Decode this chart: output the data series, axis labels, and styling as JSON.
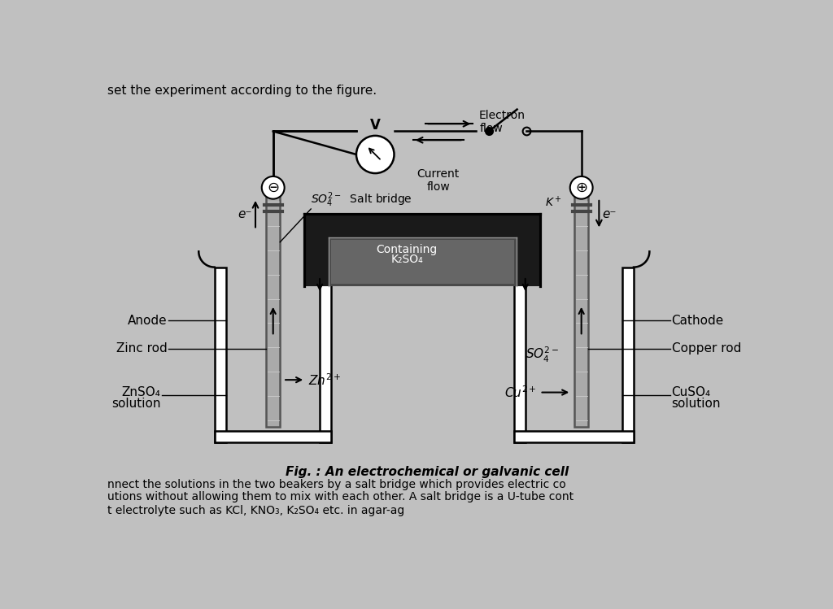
{
  "bg_color": "#c0c0c0",
  "title_text": "Fig. : An electrochemical or galvanic cell",
  "header_text": "set the experiment according to the figure.",
  "footer_lines": [
    "nnect the solutions in the two beakers by a salt bridge which provides electric co",
    "utions without allowing them to mix with each other. A salt bridge is a U-tube cont",
    "t electrolyte such as KCl, KNO₃, K₂SO₄ etc. in agar-ag"
  ],
  "labels": {
    "anode": "Anode",
    "zinc_rod": "Zinc rod",
    "znso4_line1": "ZnSO₄",
    "znso4_line2": "solution",
    "zn2plus": "Zn²⁺",
    "e_left": "e⁻",
    "e_right": "e⁻",
    "electron_flow": "Electron\nflow",
    "current_flow": "Current\nflow",
    "voltmeter": "V",
    "cathode": "Cathode",
    "copper_rod": "Copper rod",
    "cuso4_line1": "CuSO₄",
    "cuso4_line2": "solution",
    "so4_right": "SO₄²⁻",
    "cu2plus": "Cu²⁺",
    "minus_sign": "⊖",
    "plus_sign": "⊕",
    "salt_bridge_left": "SO₄²⁻  Salt bridge",
    "salt_bridge_right": "K⁺",
    "containing_line1": "Containing",
    "containing_line2": "K₂SO₄"
  }
}
